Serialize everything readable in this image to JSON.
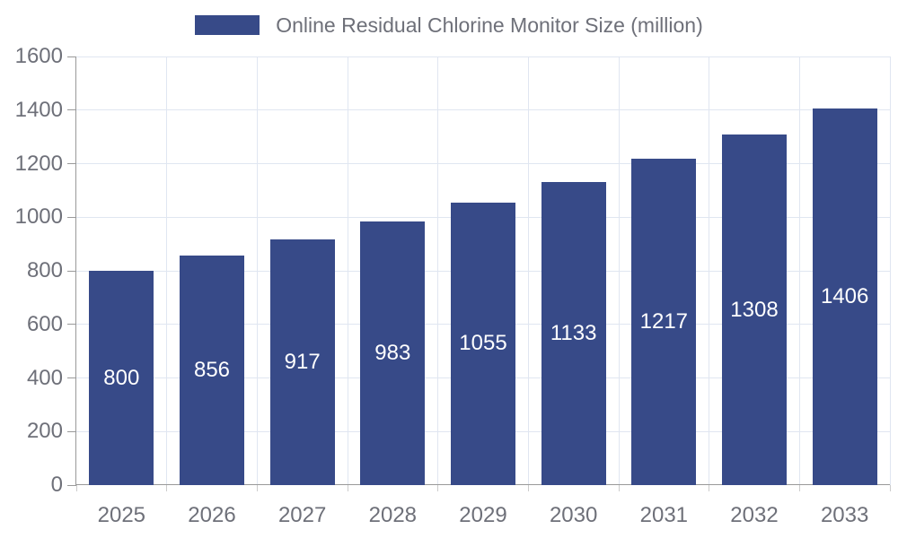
{
  "chart_data": {
    "type": "bar",
    "title": "Online Residual Chlorine Monitor Size (million)",
    "legend_position": "top",
    "categories": [
      "2025",
      "2026",
      "2027",
      "2028",
      "2029",
      "2030",
      "2031",
      "2032",
      "2033"
    ],
    "series": [
      {
        "name": "Online Residual Chlorine Monitor Size (million)",
        "values": [
          800,
          856,
          917,
          983,
          1055,
          1133,
          1217,
          1308,
          1406
        ]
      }
    ],
    "xlabel": "",
    "ylabel": "",
    "ylim": [
      0,
      1600
    ],
    "yticks": [
      0,
      200,
      400,
      600,
      800,
      1000,
      1200,
      1400,
      1600
    ],
    "grid": true,
    "colors": {
      "bar": "#374a88",
      "value_label": "#ffffff",
      "text": "#6e7079",
      "grid": "#e0e6f1",
      "axis": "#999999",
      "x_tick": "#cccccc",
      "background": "#ffffff"
    }
  }
}
